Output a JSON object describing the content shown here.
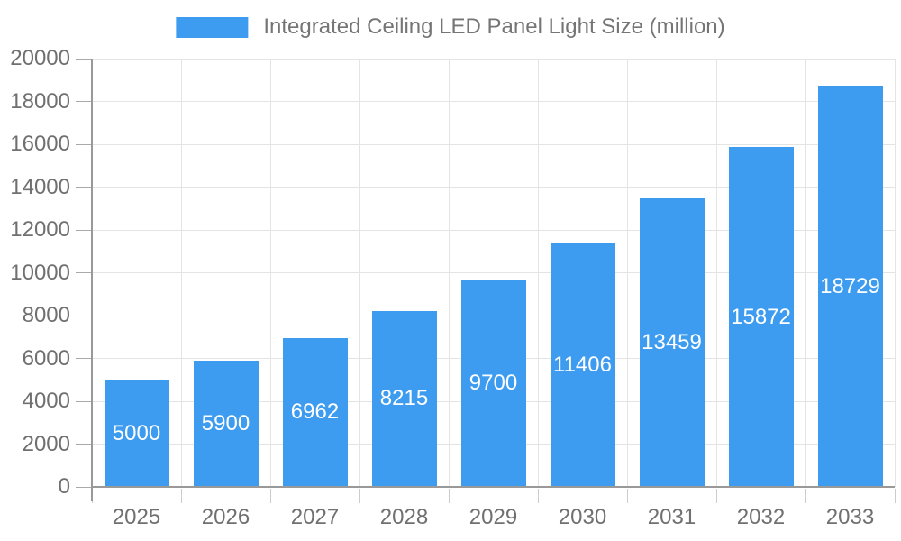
{
  "legend": {
    "label": "Integrated Ceiling LED Panel Light Size (million)"
  },
  "colors": {
    "bar": "#3d9cf0",
    "grid": "#e4e4e4",
    "axis": "#999999",
    "axis_label": "#707070",
    "legend_text": "#757575",
    "bar_label": "#ffffff"
  },
  "chart_data": {
    "type": "bar",
    "title": "Integrated Ceiling LED Panel Light Size (million)",
    "legend_label": "Integrated Ceiling LED Panel Light Size (million)",
    "legend_position": "top",
    "categories": [
      "2025",
      "2026",
      "2027",
      "2028",
      "2029",
      "2030",
      "2031",
      "2032",
      "2033"
    ],
    "series": [
      {
        "name": "Integrated Ceiling LED Panel Light Size (million)",
        "values": [
          5000,
          5900,
          6962,
          8215,
          9700,
          11406,
          13459,
          15872,
          18729
        ]
      }
    ],
    "xlabel": "",
    "ylabel": "",
    "ylim": [
      0,
      20000
    ],
    "yticks": [
      0,
      2000,
      4000,
      6000,
      8000,
      10000,
      12000,
      14000,
      16000,
      18000,
      20000
    ],
    "grid": true,
    "bar_value_labels_inside": true
  }
}
